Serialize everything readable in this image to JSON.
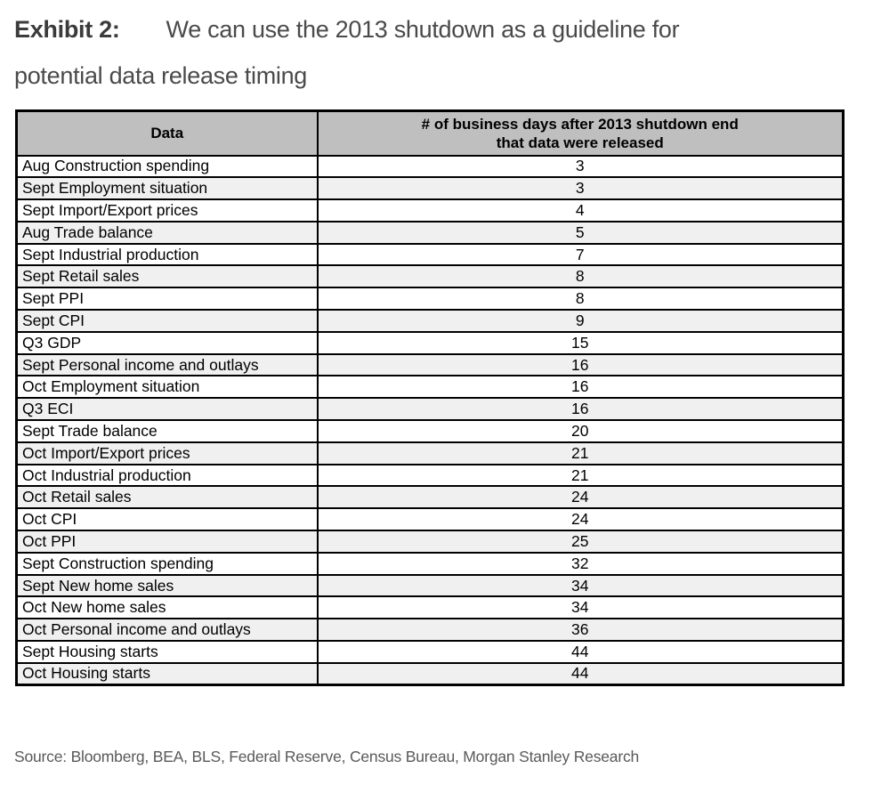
{
  "title": {
    "exhibit_label": "Exhibit 2:",
    "line1": "We can use the 2013 shutdown as a guideline for",
    "line2": "potential data release timing"
  },
  "table": {
    "col1_header": "Data",
    "col2_header_line1": "# of business days after 2013 shutdown end",
    "col2_header_line2": "that data were released",
    "rows": [
      {
        "label": "Aug Construction spending",
        "value": "3"
      },
      {
        "label": "Sept Employment situation",
        "value": "3"
      },
      {
        "label": "Sept Import/Export prices",
        "value": "4"
      },
      {
        "label": "Aug Trade balance",
        "value": "5"
      },
      {
        "label": "Sept Industrial production",
        "value": "7"
      },
      {
        "label": "Sept Retail sales",
        "value": "8"
      },
      {
        "label": "Sept PPI",
        "value": "8"
      },
      {
        "label": "Sept CPI",
        "value": "9"
      },
      {
        "label": "Q3 GDP",
        "value": "15"
      },
      {
        "label": "Sept Personal income and outlays",
        "value": "16"
      },
      {
        "label": "Oct Employment situation",
        "value": "16"
      },
      {
        "label": "Q3 ECI",
        "value": "16"
      },
      {
        "label": "Sept Trade balance",
        "value": "20"
      },
      {
        "label": "Oct Import/Export prices",
        "value": "21"
      },
      {
        "label": "Oct Industrial production",
        "value": "21"
      },
      {
        "label": "Oct Retail sales",
        "value": "24"
      },
      {
        "label": "Oct CPI",
        "value": "24"
      },
      {
        "label": "Oct PPI",
        "value": "25"
      },
      {
        "label": "Sept Construction spending",
        "value": "32"
      },
      {
        "label": "Sept New home sales",
        "value": "34"
      },
      {
        "label": "Oct New home sales",
        "value": "34"
      },
      {
        "label": "Oct Personal income and outlays",
        "value": "36"
      },
      {
        "label": "Sept Housing starts",
        "value": "44"
      },
      {
        "label": "Oct Housing starts",
        "value": "44"
      }
    ]
  },
  "footer": {
    "source": "Source: Bloomberg, BEA, BLS, Federal Reserve, Census Bureau, Morgan Stanley Research"
  },
  "colors": {
    "header_bg": "#bfbfbf",
    "row_stripe_bg": "#f0f0f0",
    "table_border": "#000000",
    "title_text": "#404040",
    "source_text": "#595959"
  }
}
